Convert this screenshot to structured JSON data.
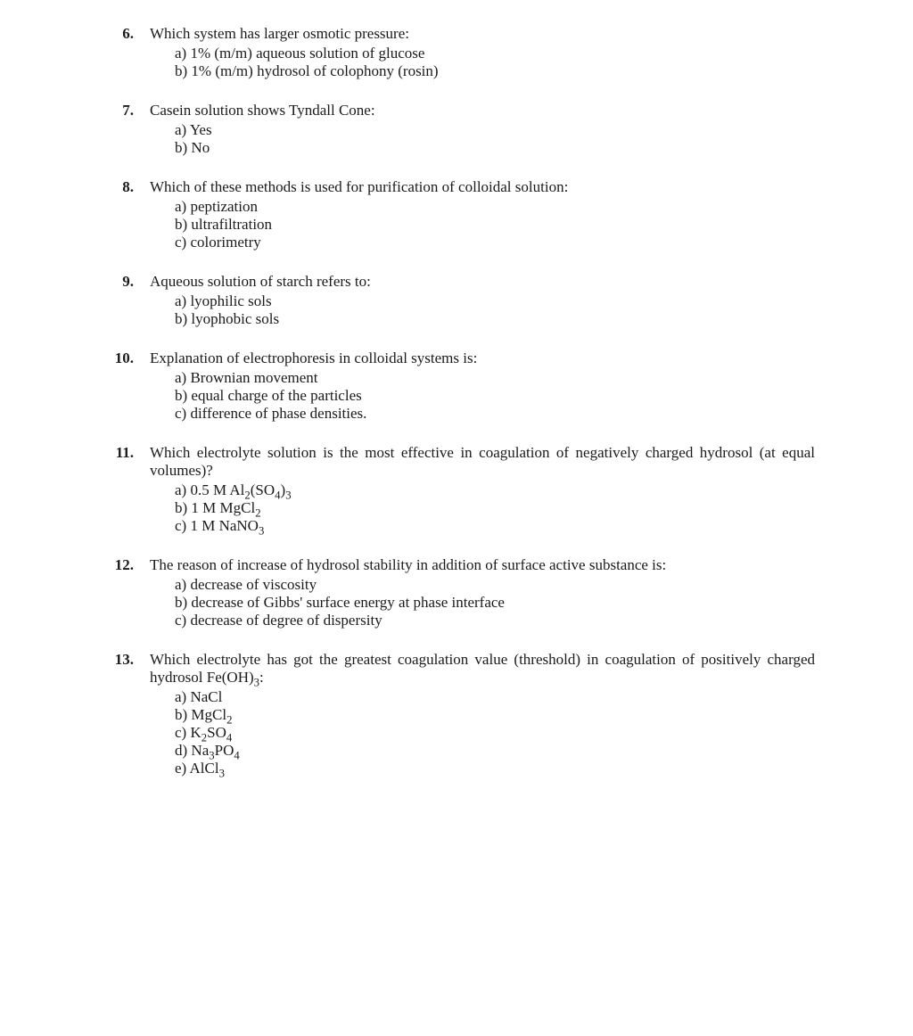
{
  "questions": [
    {
      "num": "6.",
      "stem": "Which system has larger osmotic pressure:",
      "opts": [
        "a) 1% (m/m) aqueous solution of glucose",
        "b) 1% (m/m) hydrosol of colophony (rosin)"
      ]
    },
    {
      "num": "7.",
      "stem": "Casein solution shows Tyndall Cone:",
      "opts": [
        "a) Yes",
        "b) No"
      ]
    },
    {
      "num": "8.",
      "stem": "Which of these methods is used for purification of colloidal solution:",
      "opts": [
        "a) peptization",
        "b) ultrafiltration",
        "c) colorimetry"
      ]
    },
    {
      "num": "9.",
      "stem": "Aqueous solution of starch refers to:",
      "opts": [
        "a) lyophilic sols",
        "b) lyophobic sols"
      ]
    },
    {
      "num": "10.",
      "stem": "Explanation of electrophoresis in colloidal systems is:",
      "opts": [
        "a) Brownian movement",
        "b) equal charge of the particles",
        "c) difference of phase densities."
      ]
    },
    {
      "num": "11.",
      "stem": "Which electrolyte solution is the most effective in coagulation of negatively charged hydrosol (at equal volumes)?",
      "opts": [
        "a) 0.5 M Al<sub>2</sub>(SO<sub>4</sub>)<sub>3</sub>",
        "b) 1 M MgCl<sub>2</sub>",
        "c) 1 M NaNO<sub>3</sub>"
      ]
    },
    {
      "num": "12.",
      "stem": "The reason of increase of hydrosol stability in addition of surface active substance is:",
      "opts": [
        "a) decrease of viscosity",
        "b) decrease of Gibbs' surface energy at phase interface",
        "c) decrease of degree of dispersity"
      ]
    },
    {
      "num": "13.",
      "stem": "Which electrolyte has got the greatest coagulation value (threshold) in coagulation of positively charged hydrosol Fe(OH)<sub>3</sub>:",
      "opts": [
        "a) NaCl",
        "b) MgCl<sub>2</sub>",
        "c) K<sub>2</sub>SO<sub>4</sub>",
        "d) Na<sub>3</sub>PO<sub>4</sub>",
        "e) AlCl<sub>3</sub>"
      ]
    }
  ]
}
